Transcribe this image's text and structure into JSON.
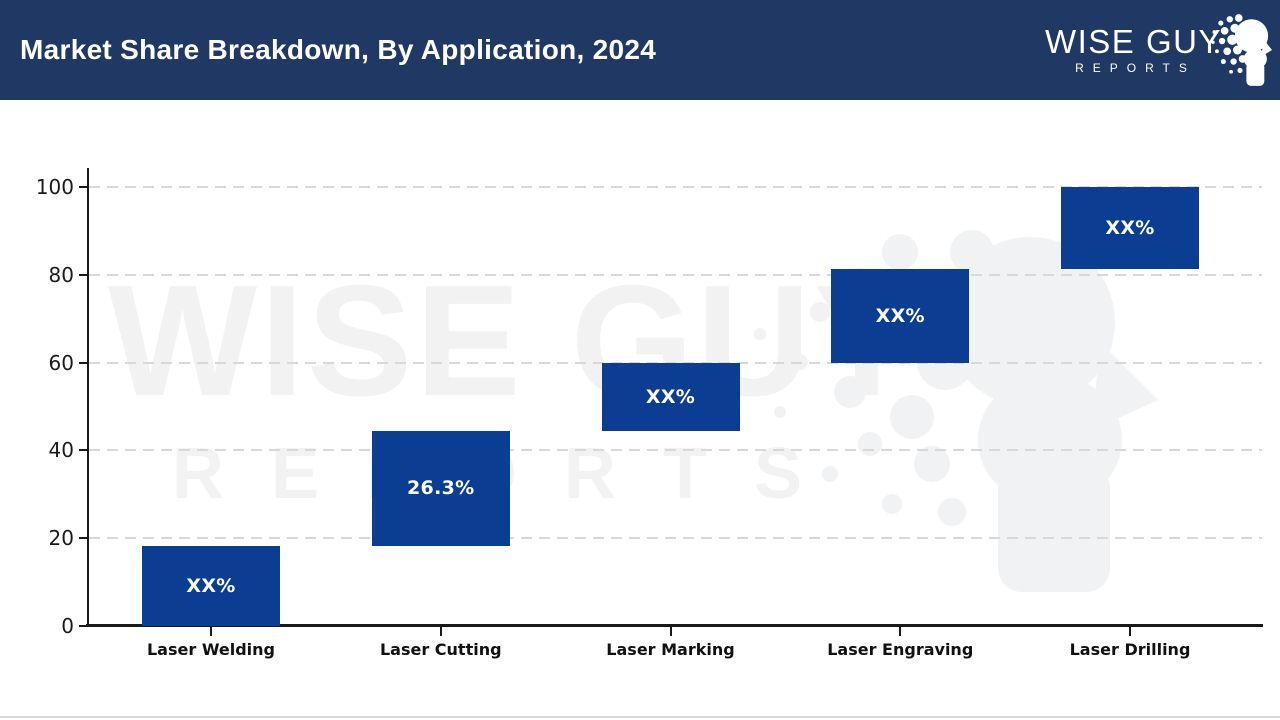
{
  "header": {
    "title": "Market Share Breakdown, By Application, 2024",
    "logo": {
      "brand_line1": "WISE GUY",
      "brand_line2": "REPORTS"
    }
  },
  "watermark": {
    "line1": "WISE GUY",
    "line2": "REPORTS"
  },
  "colors": {
    "header_bg": "#1f3864",
    "bar_fill": "#0b3e92",
    "bar_label": "#ffffff",
    "grid_line": "#d8d8d8",
    "axis_line": "#1a1a1a",
    "watermark": "#f1f2f4",
    "title_text": "#ffffff"
  },
  "chart_data": {
    "type": "bar",
    "subtype": "waterfall",
    "title": "Market Share Breakdown, By Application, 2024",
    "unit": "%",
    "categories": [
      "Laser Welding",
      "Laser Cutting",
      "Laser Marking",
      "Laser Engraving",
      "Laser Drilling"
    ],
    "series": [
      {
        "name": "Market Share",
        "segments": [
          {
            "category": "Laser Welding",
            "start": 0,
            "end": 18.2,
            "value": 18.2,
            "label": "XX%"
          },
          {
            "category": "Laser Cutting",
            "start": 18.2,
            "end": 44.5,
            "value": 26.3,
            "label": "26.3%"
          },
          {
            "category": "Laser Marking",
            "start": 44.5,
            "end": 59.9,
            "value": 15.4,
            "label": "XX%"
          },
          {
            "category": "Laser Engraving",
            "start": 59.9,
            "end": 81.3,
            "value": 21.4,
            "label": "XX%"
          },
          {
            "category": "Laser Drilling",
            "start": 81.3,
            "end": 100,
            "value": 18.7,
            "label": "XX%"
          }
        ]
      }
    ],
    "ylim": [
      0,
      100
    ],
    "yticks": [
      0,
      20,
      40,
      60,
      80,
      100
    ],
    "grid": "horizontal-dashed",
    "legend": "none"
  }
}
